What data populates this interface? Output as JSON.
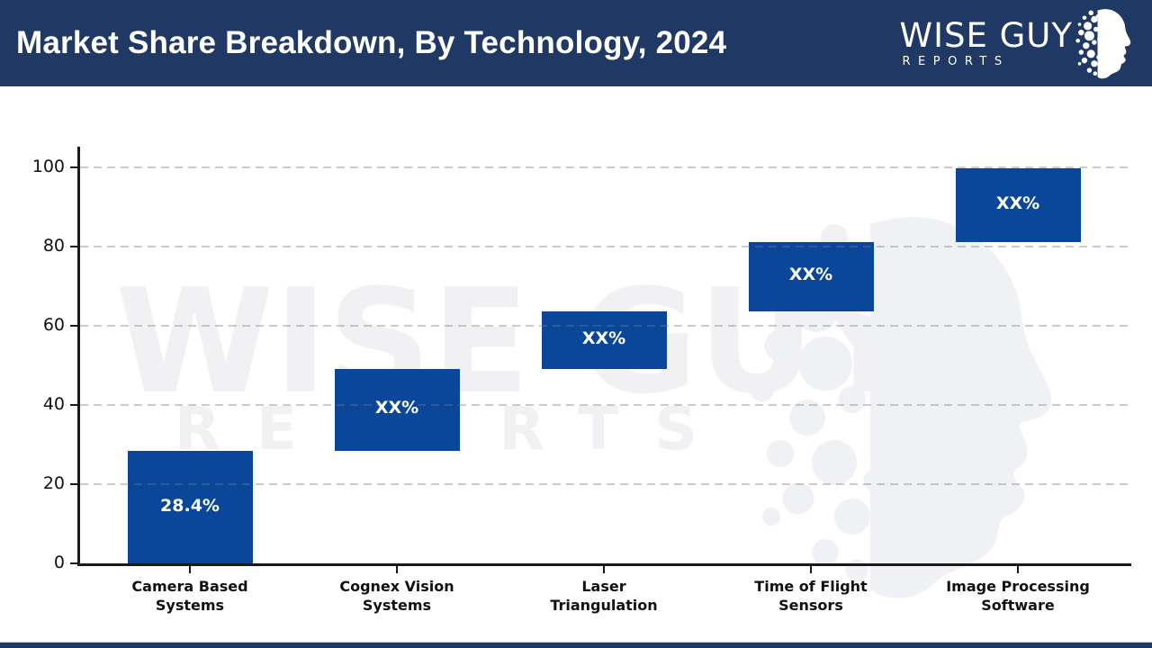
{
  "header": {
    "title": "Market Share Breakdown, By Technology, 2024",
    "logo": {
      "name_top": "WISE GUY",
      "name_bottom": "REPORTS"
    }
  },
  "watermark": {
    "big_text": "WISE GUY",
    "small_text": "REPORTS"
  },
  "colors": {
    "header_bg": "#1f3864",
    "footer_bg": "#1f3864",
    "bar": "#0a4699",
    "bar_value_text": "#ffffff",
    "axis": "#1a1a1a",
    "grid": "#7a7a7a",
    "watermark": "#f1f1f3"
  },
  "chart_data": {
    "type": "bar",
    "subtype": "floating-waterfall",
    "title": "Market Share Breakdown, By Technology, 2024",
    "xlabel": "",
    "ylabel": "",
    "ylim": [
      0,
      100
    ],
    "yticks": [
      0,
      20,
      40,
      60,
      80,
      100
    ],
    "grid": "horizontal-dashed",
    "legend": "none",
    "categories": [
      "Camera Based Systems",
      "Cognex Vision Systems",
      "Laser Triangulation",
      "Time of Flight Sensors",
      "Image Processing Software"
    ],
    "category_lines": [
      [
        "Camera Based",
        "Systems"
      ],
      [
        "Cognex Vision",
        "Systems"
      ],
      [
        "Laser",
        "Triangulation"
      ],
      [
        "Time of Flight",
        "Sensors"
      ],
      [
        "Image Processing",
        "Software"
      ]
    ],
    "segments": [
      {
        "category": "Camera Based Systems",
        "start": 0,
        "end": 28.4,
        "label": "28.4%"
      },
      {
        "category": "Cognex Vision Systems",
        "start": 28.4,
        "end": 49.2,
        "label": "XX%"
      },
      {
        "category": "Laser Triangulation",
        "start": 49.2,
        "end": 63.6,
        "label": "XX%"
      },
      {
        "category": "Time of Flight Sensors",
        "start": 63.6,
        "end": 81.2,
        "label": "XX%"
      },
      {
        "category": "Image Processing Software",
        "start": 81.2,
        "end": 99.8,
        "label": "XX%"
      }
    ]
  }
}
